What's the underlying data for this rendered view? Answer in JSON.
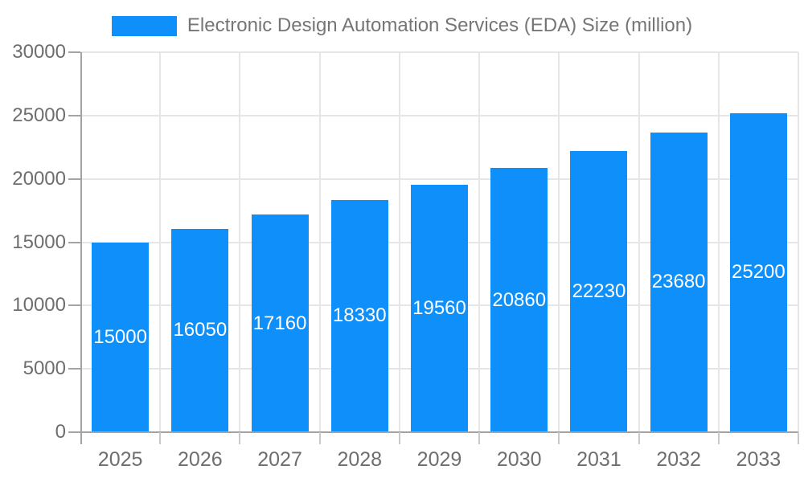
{
  "page": {
    "background": "#ffffff"
  },
  "chart_data": {
    "type": "bar",
    "title": "Electronic Design Automation Services (EDA) Size (million)",
    "categories": [
      "2025",
      "2026",
      "2027",
      "2028",
      "2029",
      "2030",
      "2031",
      "2032",
      "2033"
    ],
    "values": [
      15000,
      16050,
      17160,
      18330,
      19560,
      20860,
      22230,
      23680,
      25200
    ],
    "value_labels": [
      "15000",
      "16050",
      "17160",
      "18330",
      "19560",
      "20860",
      "22230",
      "23680",
      "25200"
    ],
    "xlabel": "",
    "ylabel": "",
    "ylim": [
      0,
      30000
    ],
    "yticks": [
      0,
      5000,
      10000,
      15000,
      20000,
      25000,
      30000
    ],
    "ytick_labels": [
      "0",
      "5000",
      "10000",
      "15000",
      "20000",
      "25000",
      "30000"
    ],
    "grid": true,
    "legend_position": "top-center",
    "value_label_position": "inside-center",
    "colors": {
      "bar": "#0e8ff9",
      "value_label": "#ffffff",
      "grid": "#e6e6e6",
      "axis": "#a3a3a3",
      "y_tick": "#a3a3a3",
      "x_tick": "#c9c9c9",
      "axis_label": "#6e6e6e",
      "legend_text": "#757575",
      "background": "#ffffff"
    }
  }
}
